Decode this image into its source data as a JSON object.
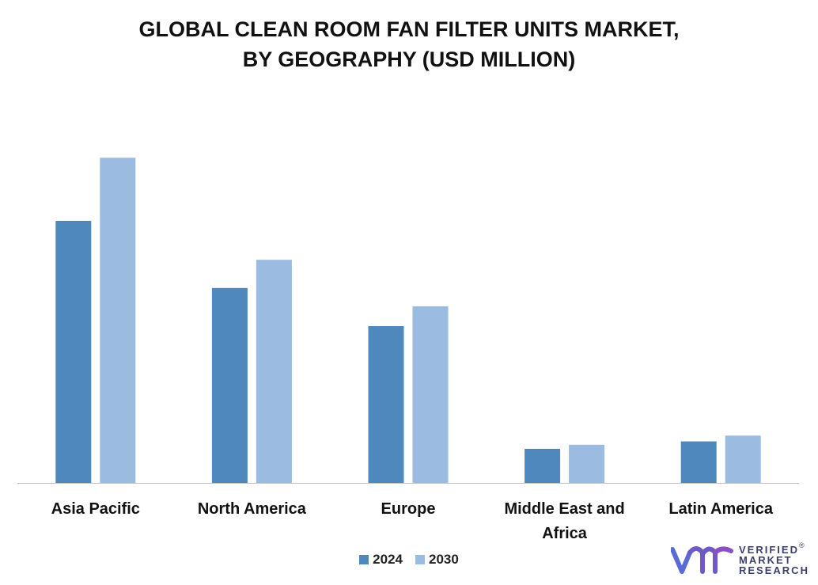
{
  "chart_data": {
    "type": "bar",
    "title_lines": [
      "GLOBAL CLEAN ROOM FAN FILTER UNITS MARKET,",
      "BY GEOGRAPHY (USD MILLION)"
    ],
    "categories": [
      [
        "Asia Pacific"
      ],
      [
        "North America"
      ],
      [
        "Europe"
      ],
      [
        "Middle East and",
        "Africa"
      ],
      [
        "Latin America"
      ]
    ],
    "series": [
      {
        "name": "2024",
        "color": "#4f88bd",
        "values": [
          316,
          235,
          189,
          41,
          50
        ]
      },
      {
        "name": "2030",
        "color": "#9bbbe0",
        "values": [
          392,
          269,
          213,
          46,
          57
        ]
      }
    ],
    "ylim": [
      0,
      420
    ],
    "grid": false,
    "legend_position": "bottom"
  },
  "branding": {
    "logo_icon": "vmr-logo-icon",
    "logo_lines": [
      "VERIFIED",
      "MARKET",
      "RESEARCH"
    ],
    "registered_mark": "®",
    "color": "#3a3f6e"
  }
}
